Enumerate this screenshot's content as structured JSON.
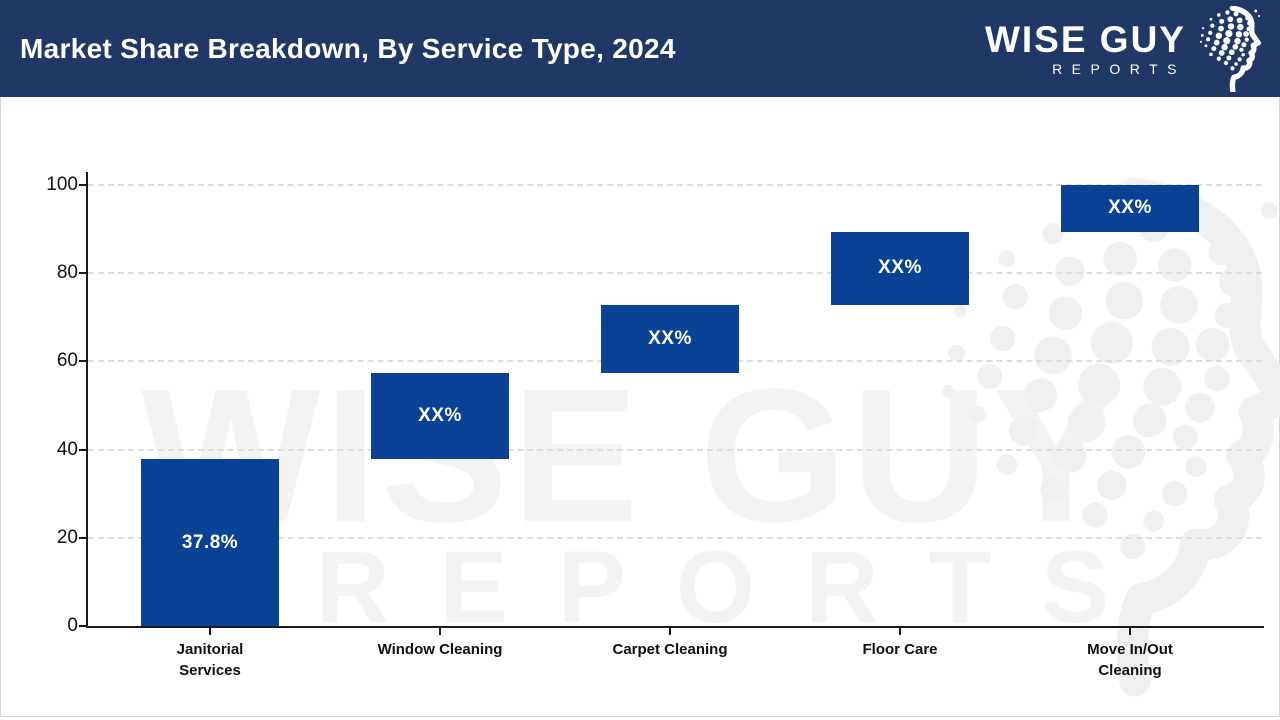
{
  "header": {
    "title": "Market Share Breakdown, By Service Type, 2024",
    "brand_line1": "WISE GUY",
    "brand_line2": "REPORTS"
  },
  "watermark": {
    "line1": "WISE GUY",
    "line2": "REPORTS"
  },
  "chart_data": {
    "type": "bar",
    "variant": "waterfall",
    "title": "Market Share Breakdown, By Service Type, 2024",
    "categories": [
      "Janitorial Services",
      "Window Cleaning",
      "Carpet Cleaning",
      "Floor Care",
      "Move In/Out Cleaning"
    ],
    "categories_display": [
      "Janitorial\nServices",
      "Window Cleaning",
      "Carpet Cleaning",
      "Floor Care",
      "Move In/Out\nCleaning"
    ],
    "segments": [
      {
        "category": "Janitorial Services",
        "start": 0,
        "end": 37.8,
        "label": "37.8%"
      },
      {
        "category": "Window Cleaning",
        "start": 37.8,
        "end": 57.3,
        "label": "XX%"
      },
      {
        "category": "Carpet Cleaning",
        "start": 57.3,
        "end": 72.8,
        "label": "XX%"
      },
      {
        "category": "Floor Care",
        "start": 72.8,
        "end": 89.4,
        "label": "XX%"
      },
      {
        "category": "Move In/Out Cleaning",
        "start": 89.4,
        "end": 100,
        "label": "XX%"
      }
    ],
    "xlabel": "",
    "ylabel": "",
    "ylim": [
      0,
      100
    ],
    "yticks": [
      0,
      20,
      40,
      60,
      80,
      100
    ],
    "grid": "horizontal-dashed",
    "legend": "none",
    "bar_color": "#0a4296",
    "bar_label_color": "#ffffff",
    "header_color": "#1f3866",
    "gridline_color": "#dcdcdc",
    "axis_color": "#1a1a1a"
  }
}
